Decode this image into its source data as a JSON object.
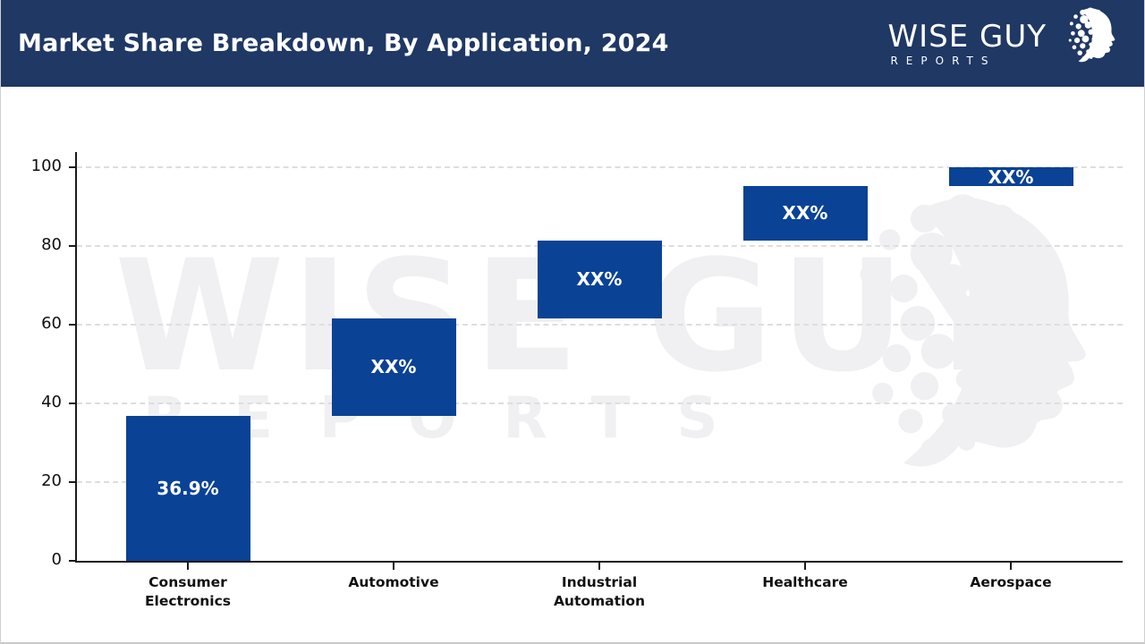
{
  "header": {
    "title": "Market Share Breakdown, By Application, 2024",
    "logo": {
      "line1": "WISE GUY",
      "line2": "REPORTS"
    }
  },
  "watermark": {
    "line1": "WISE GUY",
    "line2": "REPORTS"
  },
  "colors": {
    "header_bg": "#1f3864",
    "bar": "#0a4295",
    "grid": "#dedede",
    "axis": "#1a1a1a",
    "tick_label": "#111111",
    "value_label": "#ffffff",
    "watermark": "#f0f0f2"
  },
  "chart_data": {
    "type": "bar",
    "subtype": "waterfall",
    "title": "Market Share Breakdown, By Application, 2024",
    "xlabel": "",
    "ylabel": "",
    "categories": [
      "Consumer Electronics",
      "Automotive",
      "Industrial Automation",
      "Healthcare",
      "Aerospace"
    ],
    "values": [
      36.9,
      24.7,
      19.8,
      13.8,
      4.8
    ],
    "displayed_labels": [
      "36.9%",
      "XX%",
      "XX%",
      "XX%",
      "XX%"
    ],
    "segments": [
      {
        "category": "Consumer Electronics",
        "start": 0,
        "end": 36.9,
        "value": 36.9,
        "label": "36.9%"
      },
      {
        "category": "Automotive",
        "start": 36.9,
        "end": 61.6,
        "value": 24.7,
        "label": "XX%"
      },
      {
        "category": "Industrial Automation",
        "start": 61.6,
        "end": 81.4,
        "value": 19.8,
        "label": "XX%"
      },
      {
        "category": "Healthcare",
        "start": 81.4,
        "end": 95.2,
        "value": 13.8,
        "label": "XX%"
      },
      {
        "category": "Aerospace",
        "start": 95.2,
        "end": 100,
        "value": 4.8,
        "label": "XX%"
      }
    ],
    "y_ticks": [
      0,
      20,
      40,
      60,
      80,
      100
    ],
    "ylim": [
      0,
      104
    ],
    "grid": "horizontal-dashed",
    "legend": "none"
  }
}
